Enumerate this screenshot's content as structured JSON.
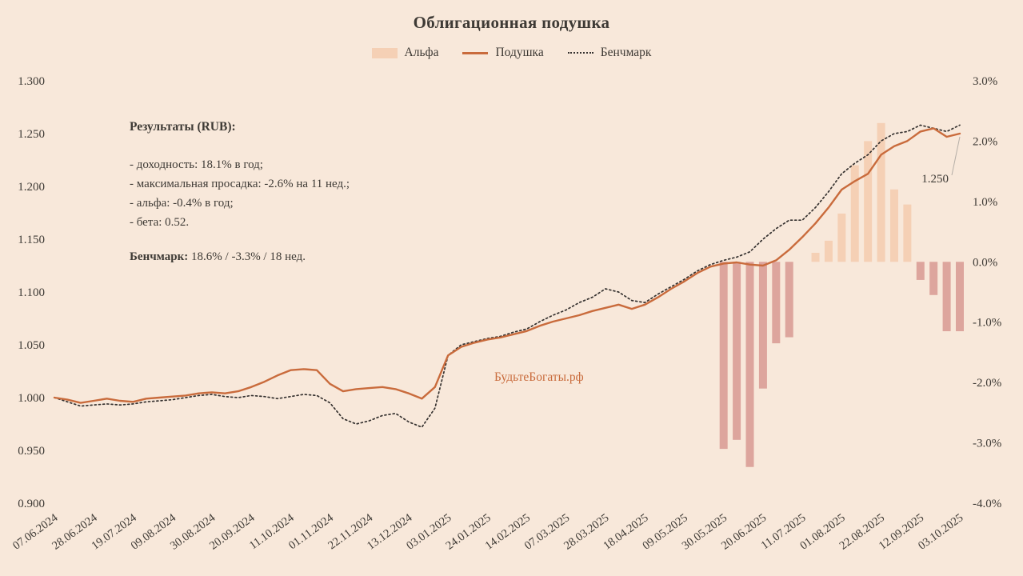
{
  "page": {
    "title": "Облигационная подушка",
    "watermark": "БудьтеБогаты.рф"
  },
  "results": {
    "title": "Результаты (RUB):",
    "lines": [
      "- доходность: 18.1% в год;",
      "- максимальная просадка: -2.6% на 11 нед.;",
      "- альфа: -0.4% в год;",
      "- бета: 0.52."
    ],
    "benchmark_label": "Бенчмарк:",
    "benchmark_value": " 18.6% / -3.3% / 18 нед."
  },
  "chart_data": {
    "type": "line+bar",
    "title": "Облигационная подушка",
    "x_ticks_every_weeks": 3,
    "x_tick_labels": [
      "07.06.2024",
      "28.06.2024",
      "19.07.2024",
      "09.08.2024",
      "30.08.2024",
      "20.09.2024",
      "11.10.2024",
      "01.11.2024",
      "22.11.2024",
      "13.12.2024",
      "03.01.2025",
      "24.01.2025",
      "14.02.2025",
      "07.03.2025",
      "28.03.2025",
      "18.04.2025",
      "09.05.2025",
      "30.05.2025",
      "20.06.2025",
      "11.07.2025",
      "01.08.2025",
      "22.08.2025",
      "12.09.2025",
      "03.10.2025"
    ],
    "left_axis": {
      "min": 0.9,
      "max": 1.3,
      "ticks": [
        "1.300",
        "1.250",
        "1.200",
        "1.150",
        "1.100",
        "1.050",
        "1.000",
        "0.950",
        "0.900"
      ]
    },
    "right_axis": {
      "min": -4.0,
      "max": 3.0,
      "ticks": [
        "3.0%",
        "2.0%",
        "1.0%",
        "0.0%",
        "-1.0%",
        "-2.0%",
        "-3.0%",
        "-4.0%"
      ]
    },
    "series": [
      {
        "name": "Альфа",
        "type": "bar",
        "axis": "right",
        "color_positive": "#f5d0b5",
        "color_negative": "#dda59d",
        "values": [
          0,
          0,
          0,
          0,
          0,
          0,
          0,
          0,
          0,
          0,
          0,
          0,
          0,
          0,
          0,
          0,
          0,
          0,
          0,
          0,
          0,
          0,
          0,
          0,
          0,
          0,
          0,
          0,
          0,
          0,
          0,
          0,
          0,
          0,
          0,
          0,
          0,
          0,
          0,
          0,
          0,
          0,
          0,
          0,
          0,
          0,
          0,
          0,
          0,
          0,
          0,
          -3.1,
          -2.95,
          -3.4,
          -2.1,
          -1.35,
          -1.25,
          0,
          0.15,
          0.35,
          0.8,
          1.6,
          2.0,
          2.3,
          1.2,
          0.95,
          -0.3,
          -0.55,
          -1.15,
          -1.15
        ]
      },
      {
        "name": "Бенчмарк",
        "type": "line",
        "dashed": true,
        "axis": "left",
        "color": "#363230",
        "values": [
          1.0,
          0.996,
          0.992,
          0.993,
          0.994,
          0.993,
          0.994,
          0.996,
          0.997,
          0.998,
          1.0,
          1.002,
          1.003,
          1.001,
          1.0,
          1.002,
          1.001,
          0.999,
          1.001,
          1.003,
          1.002,
          0.995,
          0.98,
          0.975,
          0.978,
          0.983,
          0.985,
          0.977,
          0.972,
          0.99,
          1.04,
          1.05,
          1.053,
          1.056,
          1.058,
          1.062,
          1.065,
          1.072,
          1.078,
          1.083,
          1.09,
          1.095,
          1.103,
          1.1,
          1.092,
          1.09,
          1.098,
          1.105,
          1.112,
          1.12,
          1.126,
          1.13,
          1.133,
          1.138,
          1.15,
          1.16,
          1.168,
          1.168,
          1.18,
          1.195,
          1.212,
          1.222,
          1.23,
          1.243,
          1.25,
          1.252,
          1.258,
          1.255,
          1.252,
          1.258
        ]
      },
      {
        "name": "Подушка",
        "type": "line",
        "dashed": false,
        "axis": "left",
        "color": "#c96b3c",
        "values": [
          1.0,
          0.998,
          0.995,
          0.997,
          0.999,
          0.997,
          0.996,
          0.999,
          1.0,
          1.001,
          1.002,
          1.004,
          1.005,
          1.004,
          1.006,
          1.01,
          1.015,
          1.021,
          1.026,
          1.027,
          1.026,
          1.013,
          1.006,
          1.008,
          1.009,
          1.01,
          1.008,
          1.004,
          0.999,
          1.01,
          1.04,
          1.048,
          1.052,
          1.055,
          1.057,
          1.06,
          1.063,
          1.068,
          1.072,
          1.075,
          1.078,
          1.082,
          1.085,
          1.088,
          1.084,
          1.088,
          1.095,
          1.103,
          1.11,
          1.118,
          1.124,
          1.127,
          1.128,
          1.126,
          1.125,
          1.13,
          1.14,
          1.152,
          1.165,
          1.18,
          1.197,
          1.205,
          1.212,
          1.23,
          1.238,
          1.243,
          1.252,
          1.255,
          1.247,
          1.25
        ]
      }
    ],
    "annotation": {
      "text": "1.250",
      "week": 69,
      "value": 1.25
    }
  }
}
